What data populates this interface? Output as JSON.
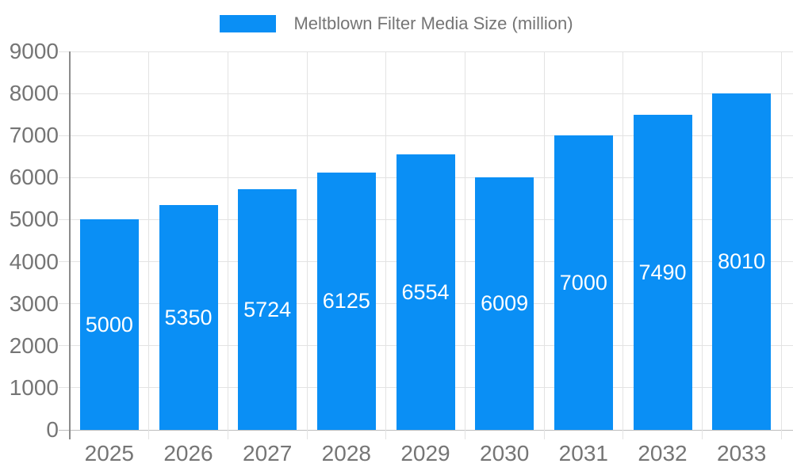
{
  "legend": {
    "label": "Meltblown Filter Media Size (million)"
  },
  "chart_data": {
    "type": "bar",
    "title": "",
    "xlabel": "",
    "ylabel": "",
    "legend_position": "top",
    "legend_entries": [
      "Meltblown Filter Media Size (million)"
    ],
    "categories": [
      "2025",
      "2026",
      "2027",
      "2028",
      "2029",
      "2030",
      "2031",
      "2032",
      "2033"
    ],
    "values": [
      5000,
      5350,
      5724,
      6125,
      6554,
      6009,
      7000,
      7490,
      8010
    ],
    "value_labels": [
      "5000",
      "5350",
      "5724",
      "6125",
      "6554",
      "6009",
      "7000",
      "7490",
      "8010"
    ],
    "ylim": [
      0,
      9000
    ],
    "ytick_interval": 1000,
    "yticks": [
      0,
      1000,
      2000,
      3000,
      4000,
      5000,
      6000,
      7000,
      8000,
      9000
    ],
    "grid": true,
    "colors": {
      "bar": "#0a8ff5",
      "value_label": "#ffffff",
      "grid_line": "#e3e3e3",
      "zero_line": "#bdbdbd",
      "axis_line": "#8c8c8c",
      "tick_label": "#757575",
      "legend_text": "#757575"
    }
  }
}
